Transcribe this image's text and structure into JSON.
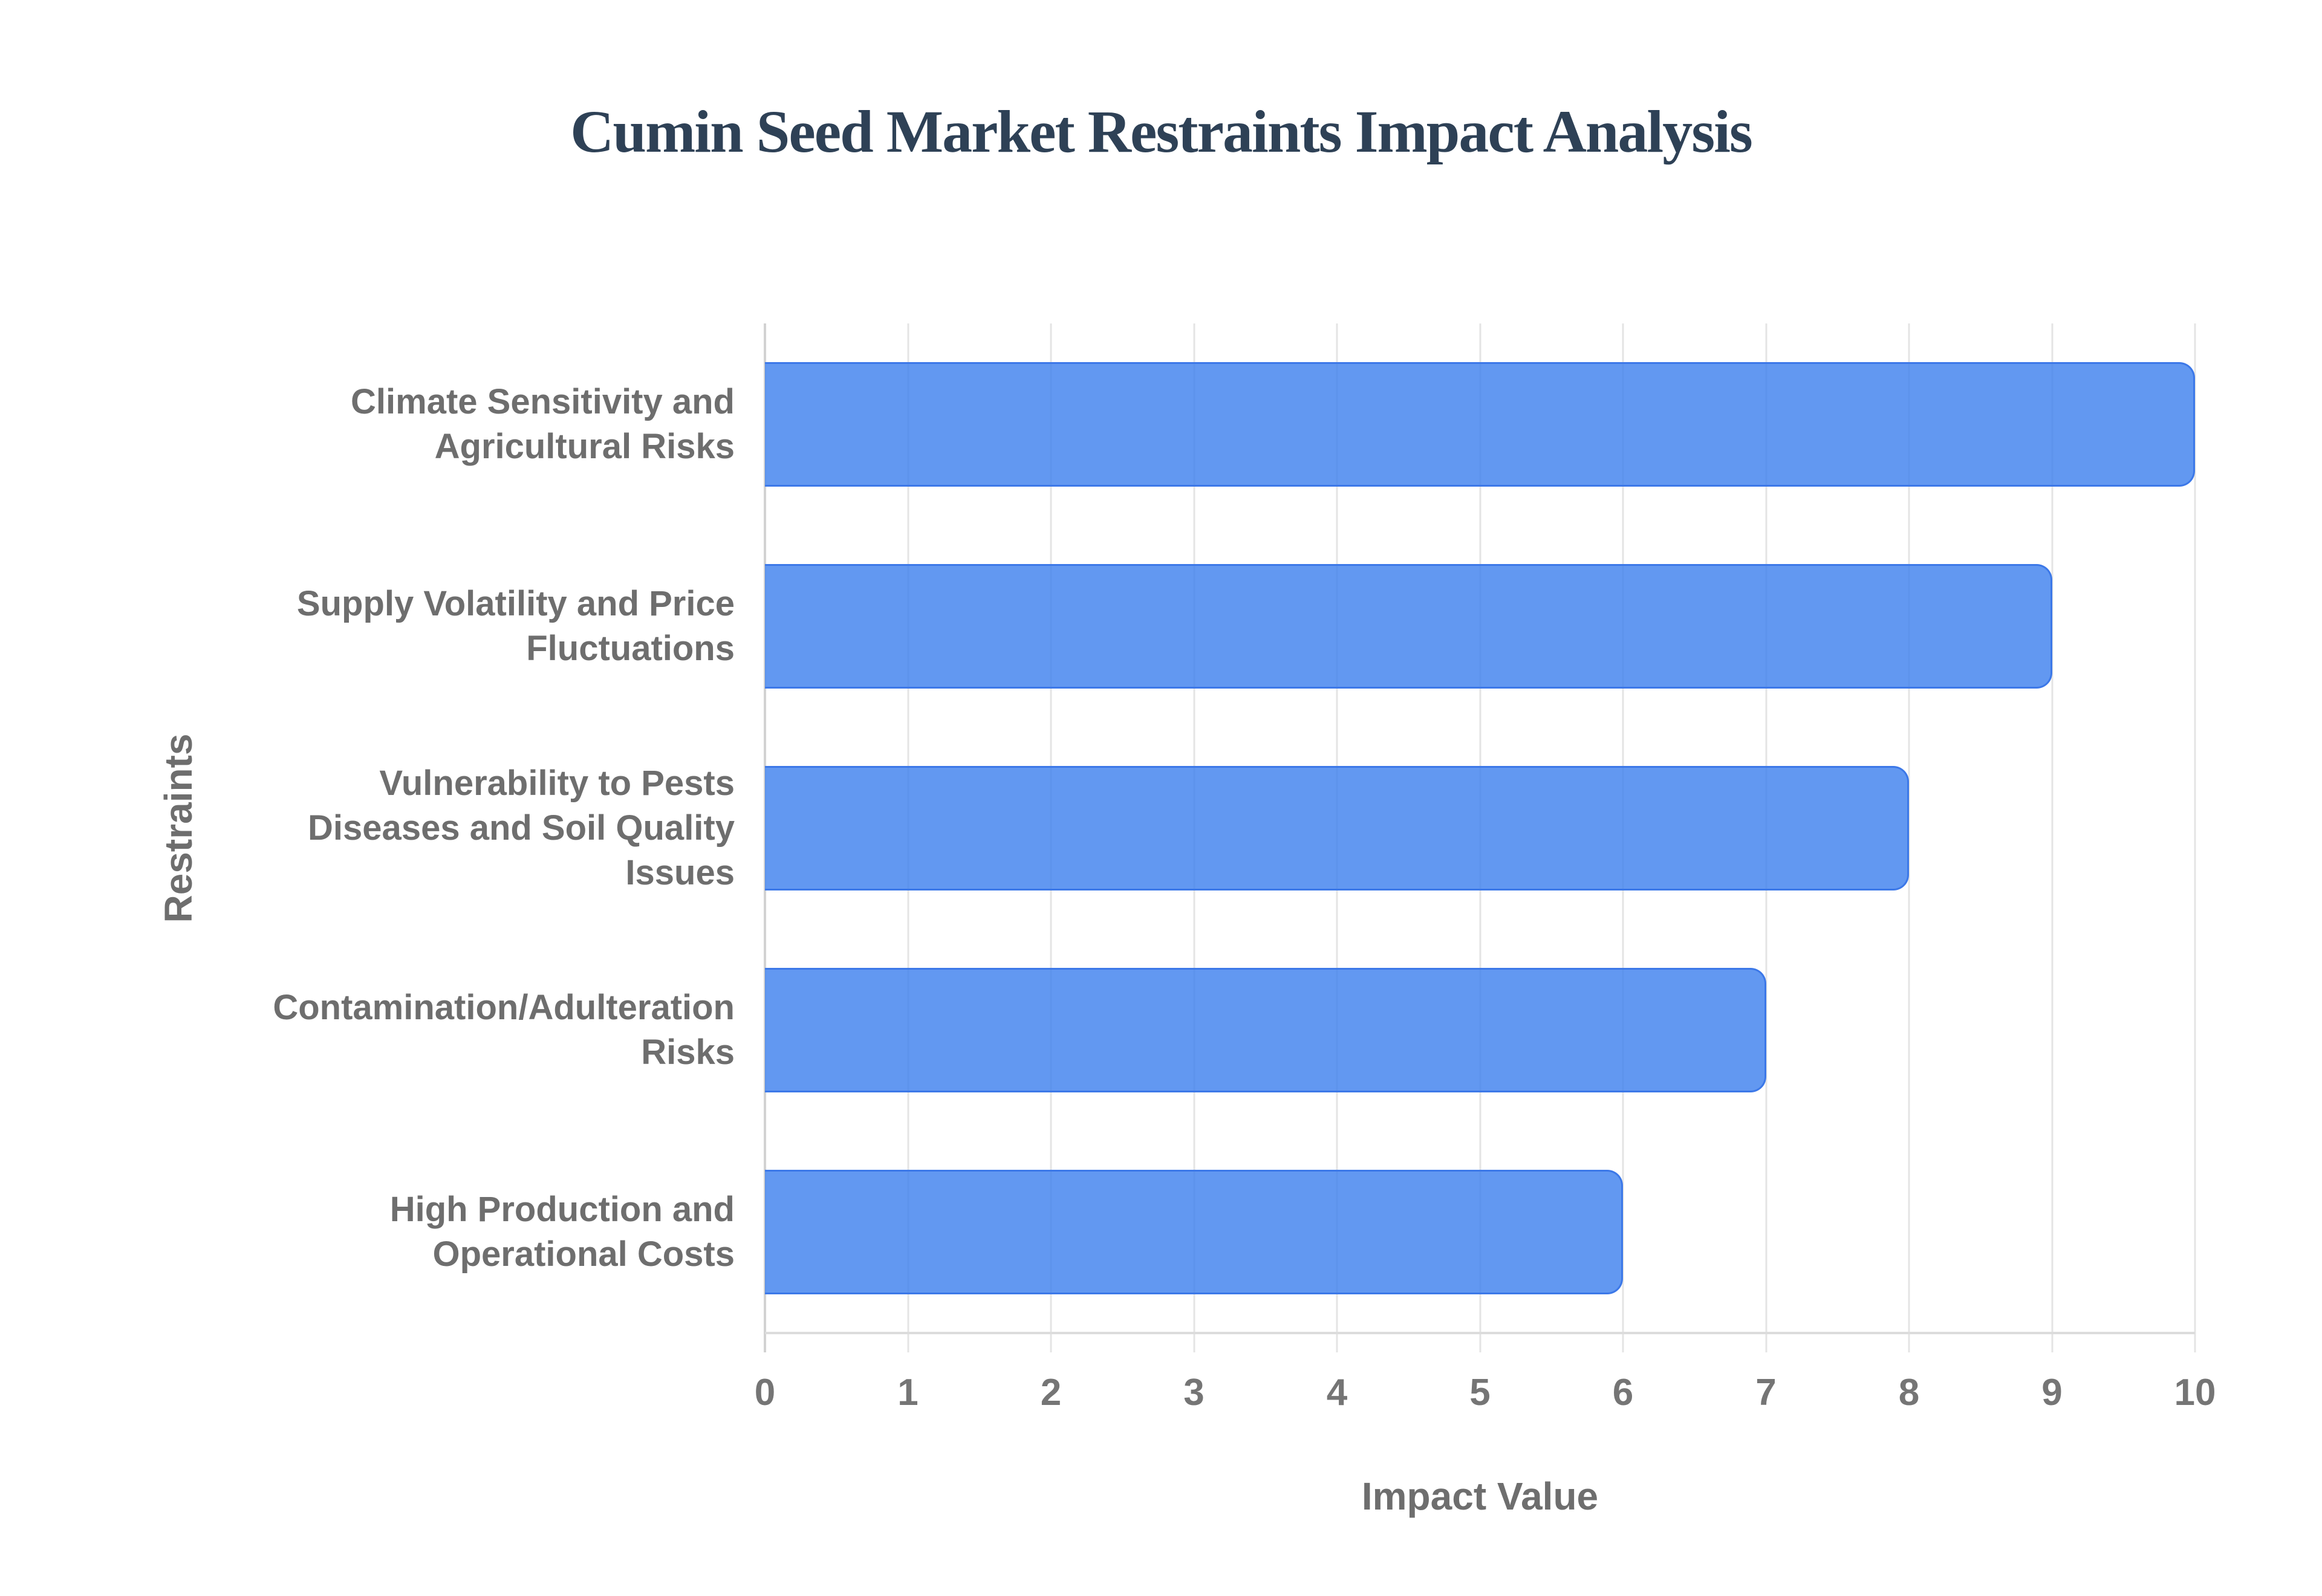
{
  "chart_data": {
    "type": "bar",
    "orientation": "horizontal",
    "title": "Cumin Seed Market Restraints Impact Analysis",
    "xlabel": "Impact Value",
    "ylabel": "Restraints",
    "categories": [
      "Climate Sensitivity and Agricultural Risks",
      "Supply Volatility and Price Fluctuations",
      "Vulnerability to Pests Diseases and Soil Quality Issues",
      "Contamination/Adulteration Risks",
      "High Production and Operational Costs"
    ],
    "category_lines": [
      [
        "Climate Sensitivity and",
        "Agricultural Risks"
      ],
      [
        "Supply Volatility and Price",
        "Fluctuations"
      ],
      [
        "Vulnerability to Pests",
        "Diseases and Soil Quality",
        "Issues"
      ],
      [
        "Contamination/Adulteration",
        "Risks"
      ],
      [
        "High Production and",
        "Operational Costs"
      ]
    ],
    "values": [
      10,
      9,
      8,
      7,
      6
    ],
    "xlim": [
      0,
      10
    ],
    "xticks": [
      0,
      1,
      2,
      3,
      4,
      5,
      6,
      7,
      8,
      9,
      10
    ],
    "grid": true,
    "legend": false,
    "colors": {
      "bar_fill": "#6199f4",
      "bar_border": "#3c78e8",
      "gridline": "#e4e4e4",
      "axis_line": "#dcdcdc",
      "title_text": "#2e4156",
      "label_text": "#6e6e6e",
      "tick_text": "#757575",
      "background": "#ffffff"
    }
  }
}
